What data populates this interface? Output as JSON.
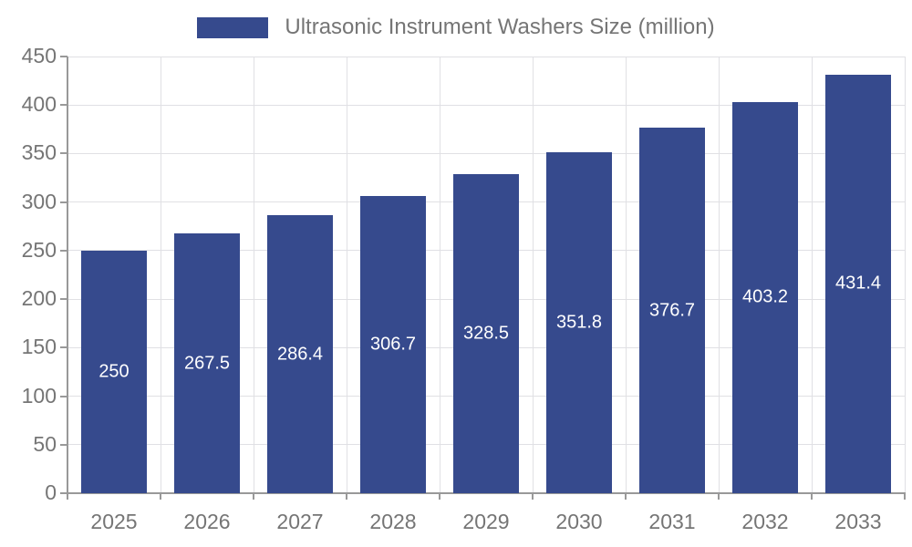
{
  "chart_data": {
    "type": "bar",
    "title": "Ultrasonic Instrument Washers Size (million)",
    "legend": [
      "Ultrasonic Instrument Washers Size (million)"
    ],
    "legend_position": "top-center",
    "categories": [
      "2025",
      "2026",
      "2027",
      "2028",
      "2029",
      "2030",
      "2031",
      "2032",
      "2033"
    ],
    "values": [
      250,
      267.5,
      286.4,
      306.7,
      328.5,
      351.8,
      376.7,
      403.2,
      431.4
    ],
    "xlabel": "",
    "ylabel": "",
    "ylim": [
      0,
      450
    ],
    "yticks": [
      0,
      50,
      100,
      150,
      200,
      250,
      300,
      350,
      400,
      450
    ],
    "grid": "horizontal-and-vertical",
    "value_labels_position": "inside-center",
    "colors": {
      "bar": "#364A8D",
      "value_label": "#ffffff",
      "axis_line": "#999999",
      "grid_line": "#e0e0e4",
      "tick_label": "#757575",
      "legend_text": "#757575",
      "background": "#ffffff"
    }
  }
}
